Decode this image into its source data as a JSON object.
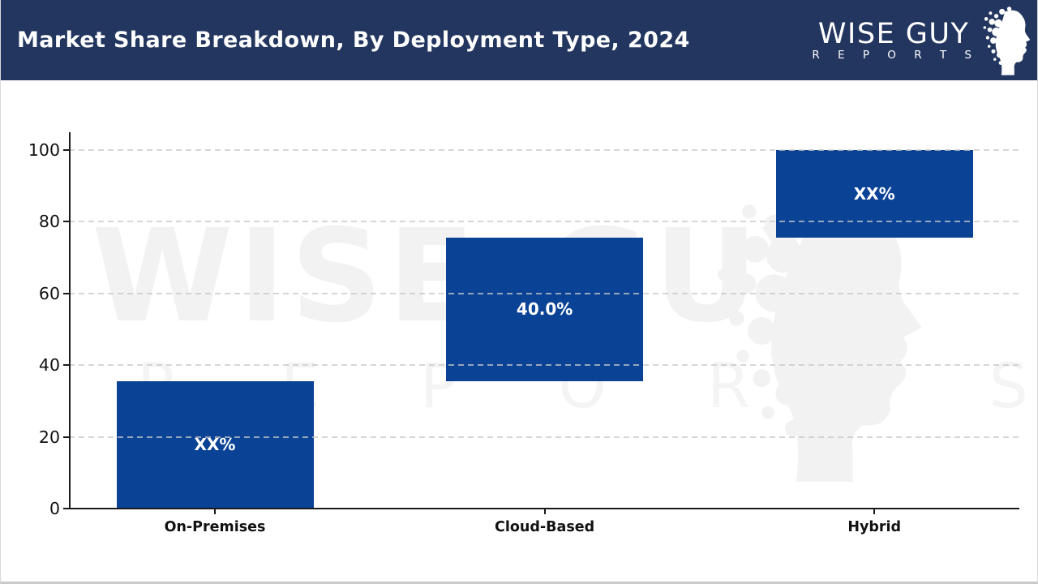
{
  "header": {
    "title": "Market Share Breakdown, By Deployment Type, 2024",
    "bg_color": "#22365f",
    "logo": {
      "primary": "WISE GUY",
      "secondary": "R E P O R T S"
    }
  },
  "watermark": {
    "primary": "WISE GUY",
    "secondary": "R E P O R T S"
  },
  "chart_data": {
    "type": "bar",
    "subtype": "floating-segment-waterfall",
    "title": "Market Share Breakdown, By Deployment Type, 2024",
    "categories": [
      "On-Premises",
      "Cloud-Based",
      "Hybrid"
    ],
    "segments": [
      {
        "category": "On-Premises",
        "start": 0,
        "end": 35.5,
        "label": "XX%"
      },
      {
        "category": "Cloud-Based",
        "start": 35.5,
        "end": 75.5,
        "label": "40.0%"
      },
      {
        "category": "Hybrid",
        "start": 75.5,
        "end": 100,
        "label": "XX%"
      }
    ],
    "ylim": [
      0,
      100
    ],
    "yticks": [
      0,
      20,
      40,
      60,
      80,
      100
    ],
    "grid": true,
    "grid_axis": "y",
    "grid_style": "dashed",
    "legend": false,
    "bar_color": "#0a4296",
    "bar_label_color": "#ffffff",
    "axis_color": "#1a1a1a",
    "grid_color": "#d9d9d9"
  }
}
